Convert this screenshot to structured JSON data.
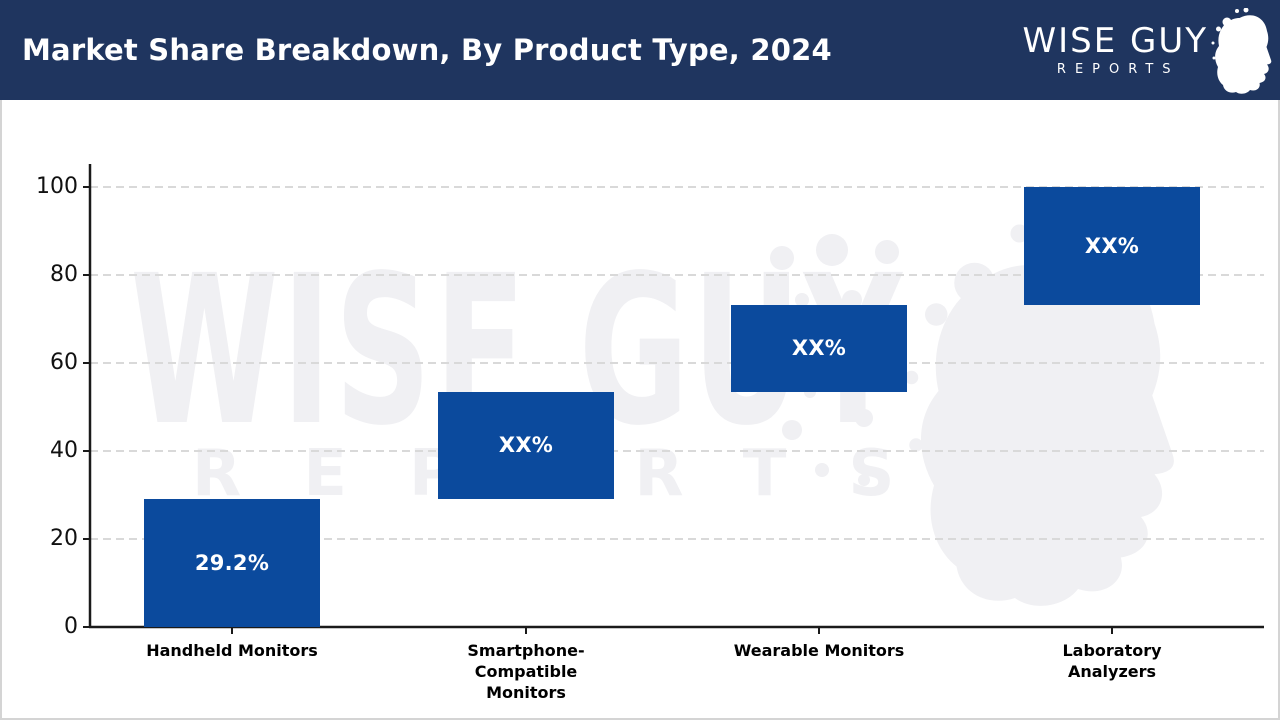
{
  "header": {
    "title": "Market Share Breakdown, By Product Type, 2024",
    "logo": {
      "wordmark": "WISE GUY",
      "subtext": "REPORTS"
    }
  },
  "watermark": {
    "wordmark": "WISE GUY",
    "subtext": "REPORTS"
  },
  "colors": {
    "header_bg": "#1f355f",
    "bar_fill": "#0b4a9d",
    "bar_label": "#ffffff",
    "grid_line": "#d9d9d9",
    "axis_line": "#1a1a1a",
    "tick_label": "#111111",
    "watermark_gray": "#f0f0f3",
    "edge_line": "#d4d4d4"
  },
  "chart_data": {
    "type": "bar",
    "subtype": "waterfall",
    "title": "Market Share Breakdown, By Product Type, 2024",
    "categories": [
      "Handheld Monitors",
      "Smartphone-\nCompatible\nMonitors",
      "Wearable Monitors",
      "Laboratory\nAnalyzers"
    ],
    "series": [
      {
        "name": "Market share (%)",
        "segments": [
          {
            "category": "Handheld Monitors",
            "start": 0,
            "end": 29.2,
            "label": "29.2%"
          },
          {
            "category": "Smartphone-Compatible Monitors",
            "start": 29.2,
            "end": 53.4,
            "label": "XX%"
          },
          {
            "category": "Wearable Monitors",
            "start": 53.4,
            "end": 73.2,
            "label": "XX%"
          },
          {
            "category": "Laboratory Analyzers",
            "start": 73.2,
            "end": 100,
            "label": "XX%"
          }
        ]
      }
    ],
    "xlabel": "",
    "ylabel": "",
    "ylim": [
      0,
      100
    ],
    "yticks": [
      0,
      20,
      40,
      60,
      80,
      100
    ],
    "grid": "horizontal-dashed",
    "legend": null
  }
}
